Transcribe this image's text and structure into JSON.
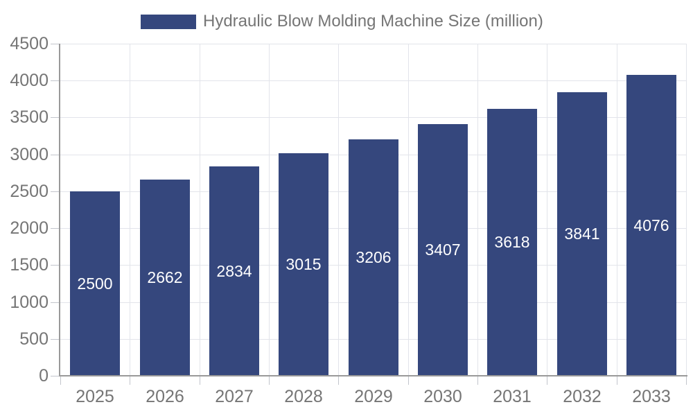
{
  "legend": {
    "label": "Hydraulic Blow Molding Machine Size (million)"
  },
  "colors": {
    "bar": "#35477d",
    "axis_line": "#999999",
    "grid_line": "#e2e4ea",
    "tick_line": "#c2c5cc",
    "label_text": "#757575",
    "value_text": "#ffffff",
    "background": "#ffffff"
  },
  "chart_data": {
    "type": "bar",
    "title": "Hydraulic Blow Molding Machine Size (million)",
    "categories": [
      "2025",
      "2026",
      "2027",
      "2028",
      "2029",
      "2030",
      "2031",
      "2032",
      "2033"
    ],
    "series": [
      {
        "name": "Hydraulic Blow Molding Machine Size (million)",
        "values": [
          2500,
          2662,
          2834,
          3015,
          3206,
          3407,
          3618,
          3841,
          4076
        ]
      }
    ],
    "value_labels_shown": true,
    "xlabel": "",
    "ylabel": "",
    "ylim": [
      0,
      4500
    ],
    "ytick_step": 500,
    "grid": true,
    "legend_position": "top"
  }
}
